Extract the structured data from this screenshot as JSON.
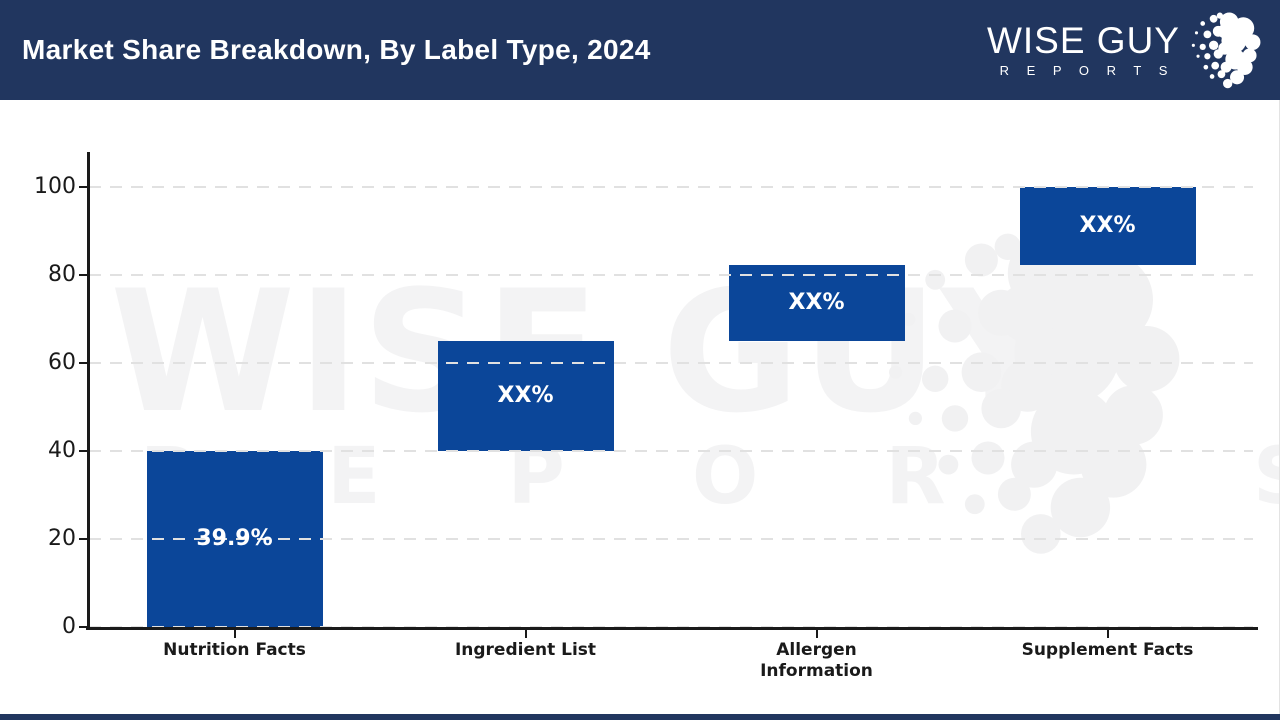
{
  "header": {
    "title": "Market Share Breakdown, By Label Type, 2024",
    "logo": {
      "line1": "WISE GUY",
      "line2": "R E P O R T S"
    }
  },
  "watermark": {
    "line1": "WISE GUY",
    "line2": "R E P O R T S"
  },
  "colors": {
    "header_bg": "#21365F",
    "footer_bg": "#21365F",
    "bar_fill": "#0B4699",
    "bar_label_text": "#FFFFFF",
    "gridline": "#E1E1E1",
    "axis": "#1A1A1A",
    "watermark": "#F3F3F4",
    "title_text": "#FFFFFF"
  },
  "chart_data": {
    "type": "bar",
    "subtype": "waterfall",
    "title": "Market Share Breakdown, By Label Type, 2024",
    "categories": [
      "Nutrition Facts",
      "Ingredient List",
      "Allergen\nInformation",
      "Supplement Facts"
    ],
    "segments": [
      {
        "category": "Nutrition Facts",
        "start": 0,
        "end": 39.9,
        "label": "39.9%"
      },
      {
        "category": "Ingredient List",
        "start": 40,
        "end": 65,
        "label": "XX%"
      },
      {
        "category": "Allergen Information",
        "start": 65,
        "end": 82.2,
        "label": "XX%"
      },
      {
        "category": "Supplement Facts",
        "start": 82.2,
        "end": 100,
        "label": "XX%"
      }
    ],
    "ylim": [
      0,
      100
    ],
    "yticks": [
      0,
      20,
      40,
      60,
      80,
      100
    ],
    "xlabel": "",
    "ylabel": "",
    "grid": "horizontal-dashed",
    "legend": false
  }
}
